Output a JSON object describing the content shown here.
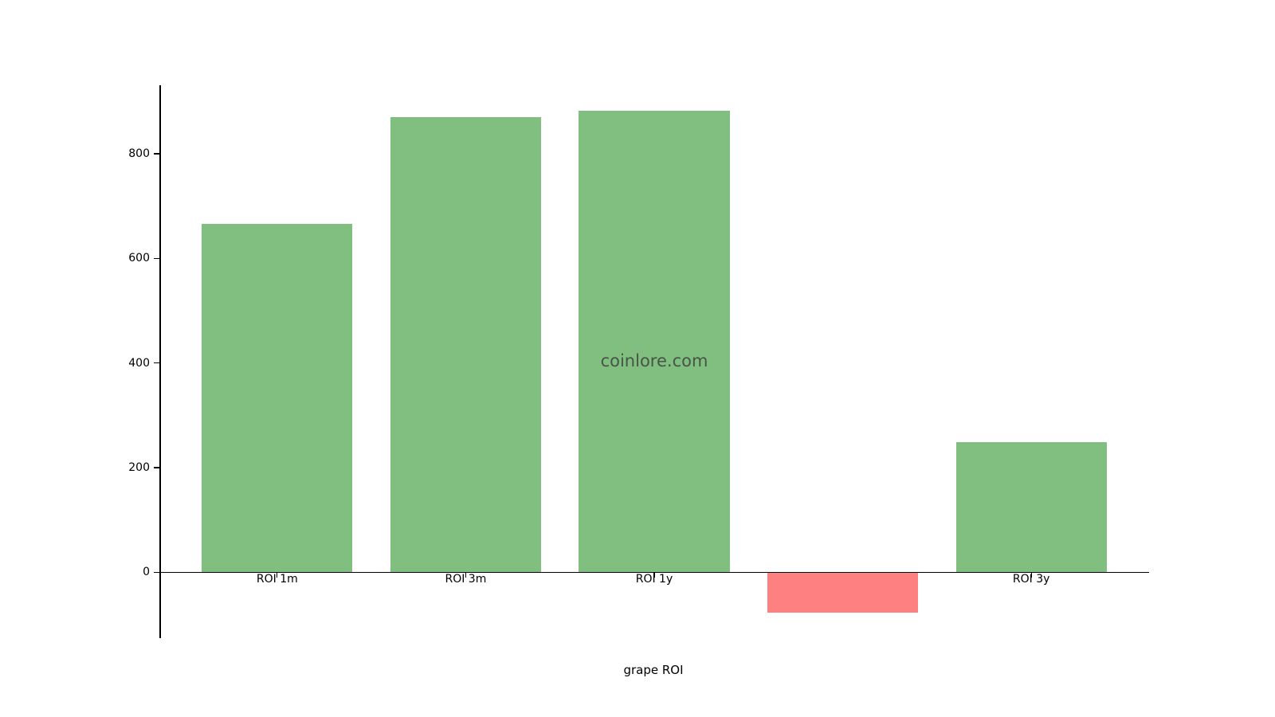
{
  "chart_data": {
    "type": "bar",
    "title": "",
    "xlabel": "grape ROI",
    "ylabel": "",
    "watermark": "coinlore.com",
    "categories": [
      "ROI 1m",
      "ROI 3m",
      "ROI 1y",
      "",
      "ROI 3y"
    ],
    "values": [
      666,
      870,
      882,
      -78,
      249
    ],
    "yticks": [
      0,
      200,
      400,
      600,
      800
    ],
    "ylim": [
      -126,
      931
    ],
    "xlim": [
      -0.625,
      4.625
    ],
    "bar_width_fraction": 0.8,
    "grid": false,
    "legend_position": "none",
    "colors": {
      "positive_bar": "#80bf80",
      "negative_bar": "#ff8080",
      "axis": "#000000",
      "tick_text": "#000000",
      "watermark_text": "#373737"
    }
  }
}
